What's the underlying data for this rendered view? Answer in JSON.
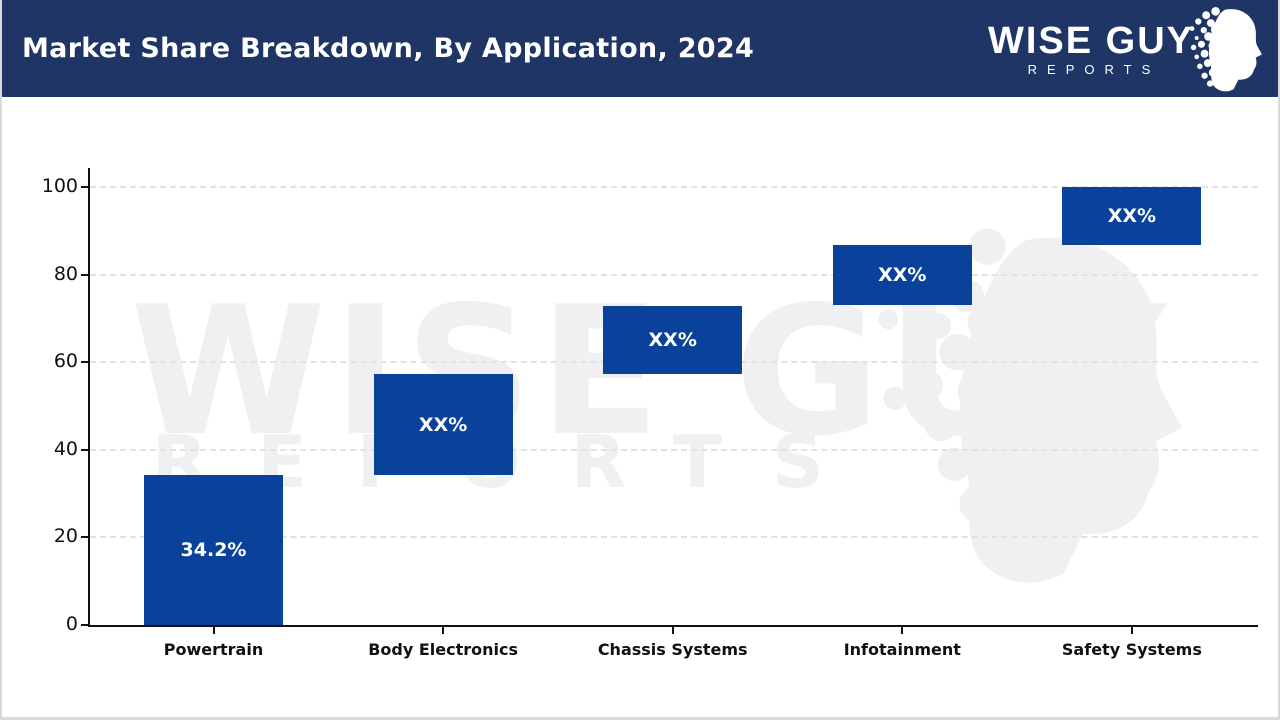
{
  "header": {
    "title": "Market Share Breakdown, By Application, 2024",
    "bg_color": "#1f3565",
    "logo": {
      "line1": "WISE GUY",
      "line2": "REPORTS"
    }
  },
  "watermark": {
    "line1": "WISE GUY",
    "line2": "REPORTS"
  },
  "chart_data": {
    "type": "bar",
    "subtype": "waterfall",
    "title": "Market Share Breakdown, By Application, 2024",
    "categories": [
      "Powertrain",
      "Body Electronics",
      "Chassis Systems",
      "Infotainment",
      "Safety Systems"
    ],
    "segments": [
      {
        "category": "Powertrain",
        "start": 0,
        "end": 34.2,
        "value_label": "34.2%"
      },
      {
        "category": "Body Electronics",
        "start": 34.2,
        "end": 57.2,
        "value_label": "XX%"
      },
      {
        "category": "Chassis Systems",
        "start": 57.2,
        "end": 72.9,
        "value_label": "XX%"
      },
      {
        "category": "Infotainment",
        "start": 73.0,
        "end": 86.8,
        "value_label": "XX%"
      },
      {
        "category": "Safety Systems",
        "start": 86.8,
        "end": 100,
        "value_label": "XX%"
      }
    ],
    "yticks": [
      0,
      20,
      40,
      60,
      80,
      100
    ],
    "ylim": [
      0,
      105
    ],
    "xlabel": "",
    "ylabel": "",
    "bar_color": "#0a429b",
    "grid": "horizontal-dashed",
    "legend": "none"
  }
}
